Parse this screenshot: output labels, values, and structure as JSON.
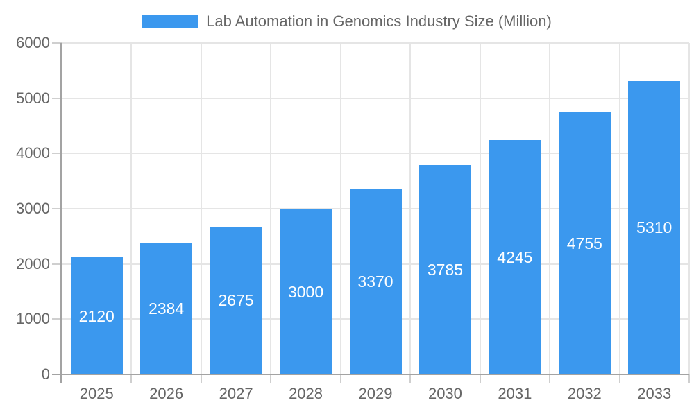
{
  "legend": {
    "label": "Lab Automation in Genomics Industry Size (Million)"
  },
  "chart_data": {
    "type": "bar",
    "title": "Lab Automation in Genomics Industry Size (Million)",
    "series_name": "Lab Automation in Genomics Industry Size (Million)",
    "categories": [
      "2025",
      "2026",
      "2027",
      "2028",
      "2029",
      "2030",
      "2031",
      "2032",
      "2033"
    ],
    "values": [
      2120,
      2384,
      2675,
      3000,
      3370,
      3785,
      4245,
      4755,
      5310
    ],
    "yticks": [
      0,
      1000,
      2000,
      3000,
      4000,
      5000,
      6000
    ],
    "ylim": [
      0,
      6000
    ],
    "ytick_step": 1000,
    "xlabel": "",
    "ylabel": "",
    "grid": true,
    "legend_position": "top",
    "value_labels": "inside-center"
  },
  "colors": {
    "accent": "#3B98EE",
    "grid": "#E5E5E5",
    "axis": "#A3A3A3",
    "tick": "#CFCFCF",
    "text": "#666666",
    "bar_label": "#FFFFFF",
    "background": "#FFFFFF"
  }
}
